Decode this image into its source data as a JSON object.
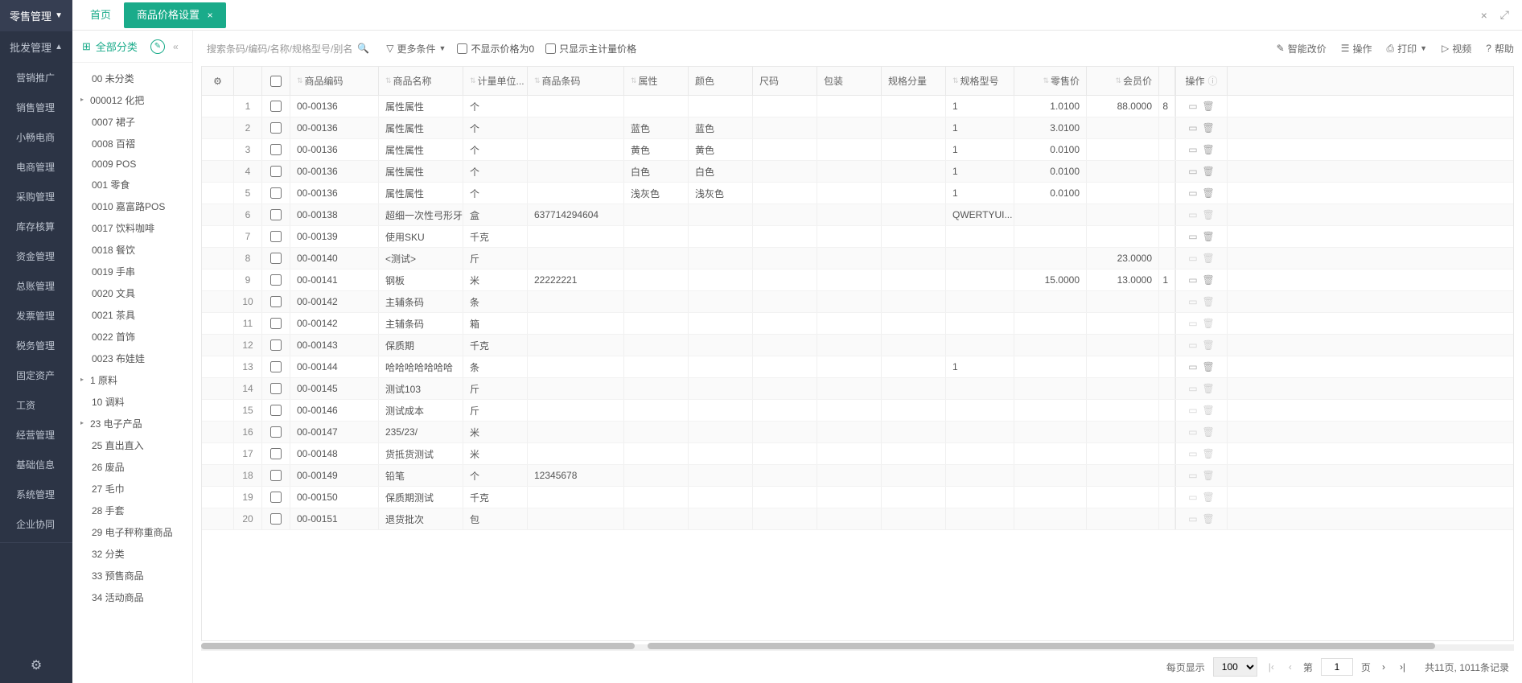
{
  "sidebar": {
    "retail": {
      "label": "零售管理",
      "expanded": false
    },
    "wholesale": {
      "label": "批发管理",
      "expanded": true
    },
    "subs": [
      {
        "label": "营销推广"
      },
      {
        "label": "销售管理"
      },
      {
        "label": "小畅电商"
      },
      {
        "label": "电商管理"
      },
      {
        "label": "采购管理"
      },
      {
        "label": "库存核算"
      },
      {
        "label": "资金管理"
      },
      {
        "label": "总账管理"
      },
      {
        "label": "发票管理"
      },
      {
        "label": "税务管理"
      },
      {
        "label": "固定资产"
      },
      {
        "label": "工资"
      },
      {
        "label": "经营管理"
      },
      {
        "label": "基础信息"
      },
      {
        "label": "系统管理"
      },
      {
        "label": "企业协同"
      }
    ]
  },
  "tabs": {
    "home": "首页",
    "active": "商品价格设置"
  },
  "tree": {
    "header": "全部分类",
    "items": [
      {
        "label": "00 未分类"
      },
      {
        "label": "000012 化把",
        "children": true
      },
      {
        "label": "0007 裙子"
      },
      {
        "label": "0008 百褶"
      },
      {
        "label": "0009 POS"
      },
      {
        "label": "001 零食"
      },
      {
        "label": "0010 嘉富路POS"
      },
      {
        "label": "0017 饮料咖啡"
      },
      {
        "label": "0018 餐饮"
      },
      {
        "label": "0019 手串"
      },
      {
        "label": "0020 文具"
      },
      {
        "label": "0021 茶具"
      },
      {
        "label": "0022 首饰"
      },
      {
        "label": "0023 布娃娃"
      },
      {
        "label": "1 原料",
        "children": true
      },
      {
        "label": "10 调料"
      },
      {
        "label": "23 电子产品",
        "children": true
      },
      {
        "label": "25 直出直入"
      },
      {
        "label": "26 废品"
      },
      {
        "label": "27 毛巾"
      },
      {
        "label": "28 手套"
      },
      {
        "label": "29 电子秤称重商品"
      },
      {
        "label": "32 分类"
      },
      {
        "label": "33 预售商品"
      },
      {
        "label": "34 活动商品"
      }
    ]
  },
  "toolbar": {
    "searchPlaceholder": "搜索条码/编码/名称/规格型号/别名",
    "more": "更多条件",
    "hideZero": "不显示价格为0",
    "mainUnitOnly": "只显示主计量价格",
    "smartPrice": "智能改价",
    "operate": "操作",
    "print": "打印",
    "video": "视频",
    "help": "帮助"
  },
  "columns": {
    "code": "商品编码",
    "name": "商品名称",
    "unit": "计量单位...",
    "barcode": "商品条码",
    "attr": "属性",
    "color": "颜色",
    "size": "尺码",
    "pkg": "包装",
    "component": "规格分量",
    "spec": "规格型号",
    "retail": "零售价",
    "member": "会员价",
    "ops": "操作"
  },
  "rows": [
    {
      "idx": 1,
      "code": "00-00136",
      "name": "属性属性",
      "unit": "个",
      "barcode": "",
      "attr": "",
      "color": "",
      "spec": "1",
      "retail": "1.0100",
      "member": "88.0000",
      "extra": "8",
      "enabled": true
    },
    {
      "idx": 2,
      "code": "00-00136",
      "name": "属性属性",
      "unit": "个",
      "barcode": "",
      "attr": "蓝色",
      "color": "蓝色",
      "spec": "1",
      "retail": "3.0100",
      "member": "",
      "enabled": true
    },
    {
      "idx": 3,
      "code": "00-00136",
      "name": "属性属性",
      "unit": "个",
      "barcode": "",
      "attr": "黄色",
      "color": "黄色",
      "spec": "1",
      "retail": "0.0100",
      "member": "",
      "enabled": true
    },
    {
      "idx": 4,
      "code": "00-00136",
      "name": "属性属性",
      "unit": "个",
      "barcode": "",
      "attr": "白色",
      "color": "白色",
      "spec": "1",
      "retail": "0.0100",
      "member": "",
      "enabled": true
    },
    {
      "idx": 5,
      "code": "00-00136",
      "name": "属性属性",
      "unit": "个",
      "barcode": "",
      "attr": "浅灰色",
      "color": "浅灰色",
      "spec": "1",
      "retail": "0.0100",
      "member": "",
      "enabled": true
    },
    {
      "idx": 6,
      "code": "00-00138",
      "name": "超细一次性弓形牙线",
      "unit": "盒",
      "barcode": "637714294604",
      "attr": "",
      "color": "",
      "spec": "QWERTYUI...",
      "retail": "",
      "member": "",
      "enabled": false
    },
    {
      "idx": 7,
      "code": "00-00139",
      "name": "使用SKU",
      "unit": "千克",
      "barcode": "",
      "attr": "",
      "color": "",
      "spec": "",
      "retail": "",
      "member": "",
      "enabled": true
    },
    {
      "idx": 8,
      "code": "00-00140",
      "name": "<测试>",
      "unit": "斤",
      "barcode": "",
      "attr": "",
      "color": "",
      "spec": "",
      "retail": "",
      "member": "23.0000",
      "enabled": false
    },
    {
      "idx": 9,
      "code": "00-00141",
      "name": "钢板",
      "unit": "米",
      "barcode": "22222221",
      "attr": "",
      "color": "",
      "spec": "",
      "retail": "15.0000",
      "member": "13.0000",
      "extra": "1",
      "enabled": true
    },
    {
      "idx": 10,
      "code": "00-00142",
      "name": "主辅条码",
      "unit": "条",
      "barcode": "",
      "attr": "",
      "color": "",
      "spec": "",
      "retail": "",
      "member": "",
      "enabled": false
    },
    {
      "idx": 11,
      "code": "00-00142",
      "name": "主辅条码",
      "unit": "箱",
      "barcode": "",
      "attr": "",
      "color": "",
      "spec": "",
      "retail": "",
      "member": "",
      "enabled": false
    },
    {
      "idx": 12,
      "code": "00-00143",
      "name": "保质期",
      "unit": "千克",
      "barcode": "",
      "attr": "",
      "color": "",
      "spec": "",
      "retail": "",
      "member": "",
      "enabled": false
    },
    {
      "idx": 13,
      "code": "00-00144",
      "name": "哈哈哈哈哈哈哈",
      "unit": "条",
      "barcode": "",
      "attr": "",
      "color": "",
      "spec": "1",
      "retail": "",
      "member": "",
      "enabled": true
    },
    {
      "idx": 14,
      "code": "00-00145",
      "name": "测试103",
      "unit": "斤",
      "barcode": "",
      "attr": "",
      "color": "",
      "spec": "",
      "retail": "",
      "member": "",
      "enabled": false
    },
    {
      "idx": 15,
      "code": "00-00146",
      "name": "测试成本",
      "unit": "斤",
      "barcode": "",
      "attr": "",
      "color": "",
      "spec": "",
      "retail": "",
      "member": "",
      "enabled": false
    },
    {
      "idx": 16,
      "code": "00-00147",
      "name": "235/23/",
      "unit": "米",
      "barcode": "",
      "attr": "",
      "color": "",
      "spec": "",
      "retail": "",
      "member": "",
      "enabled": false
    },
    {
      "idx": 17,
      "code": "00-00148",
      "name": "货抵货测试",
      "unit": "米",
      "barcode": "",
      "attr": "",
      "color": "",
      "spec": "",
      "retail": "",
      "member": "",
      "enabled": false
    },
    {
      "idx": 18,
      "code": "00-00149",
      "name": "铅笔",
      "unit": "个",
      "barcode": "12345678",
      "attr": "",
      "color": "",
      "spec": "",
      "retail": "",
      "member": "",
      "enabled": false
    },
    {
      "idx": 19,
      "code": "00-00150",
      "name": "保质期测试",
      "unit": "千克",
      "barcode": "",
      "attr": "",
      "color": "",
      "spec": "",
      "retail": "",
      "member": "",
      "enabled": false
    },
    {
      "idx": 20,
      "code": "00-00151",
      "name": "退货批次",
      "unit": "包",
      "barcode": "",
      "attr": "",
      "color": "",
      "spec": "",
      "retail": "",
      "member": "",
      "enabled": false
    }
  ],
  "pager": {
    "perPageLabel": "每页显示",
    "perPage": "100",
    "pageLabel1": "第",
    "pageLabel2": "页",
    "currentPage": "1",
    "summary": "共11页, 1011条记录"
  }
}
